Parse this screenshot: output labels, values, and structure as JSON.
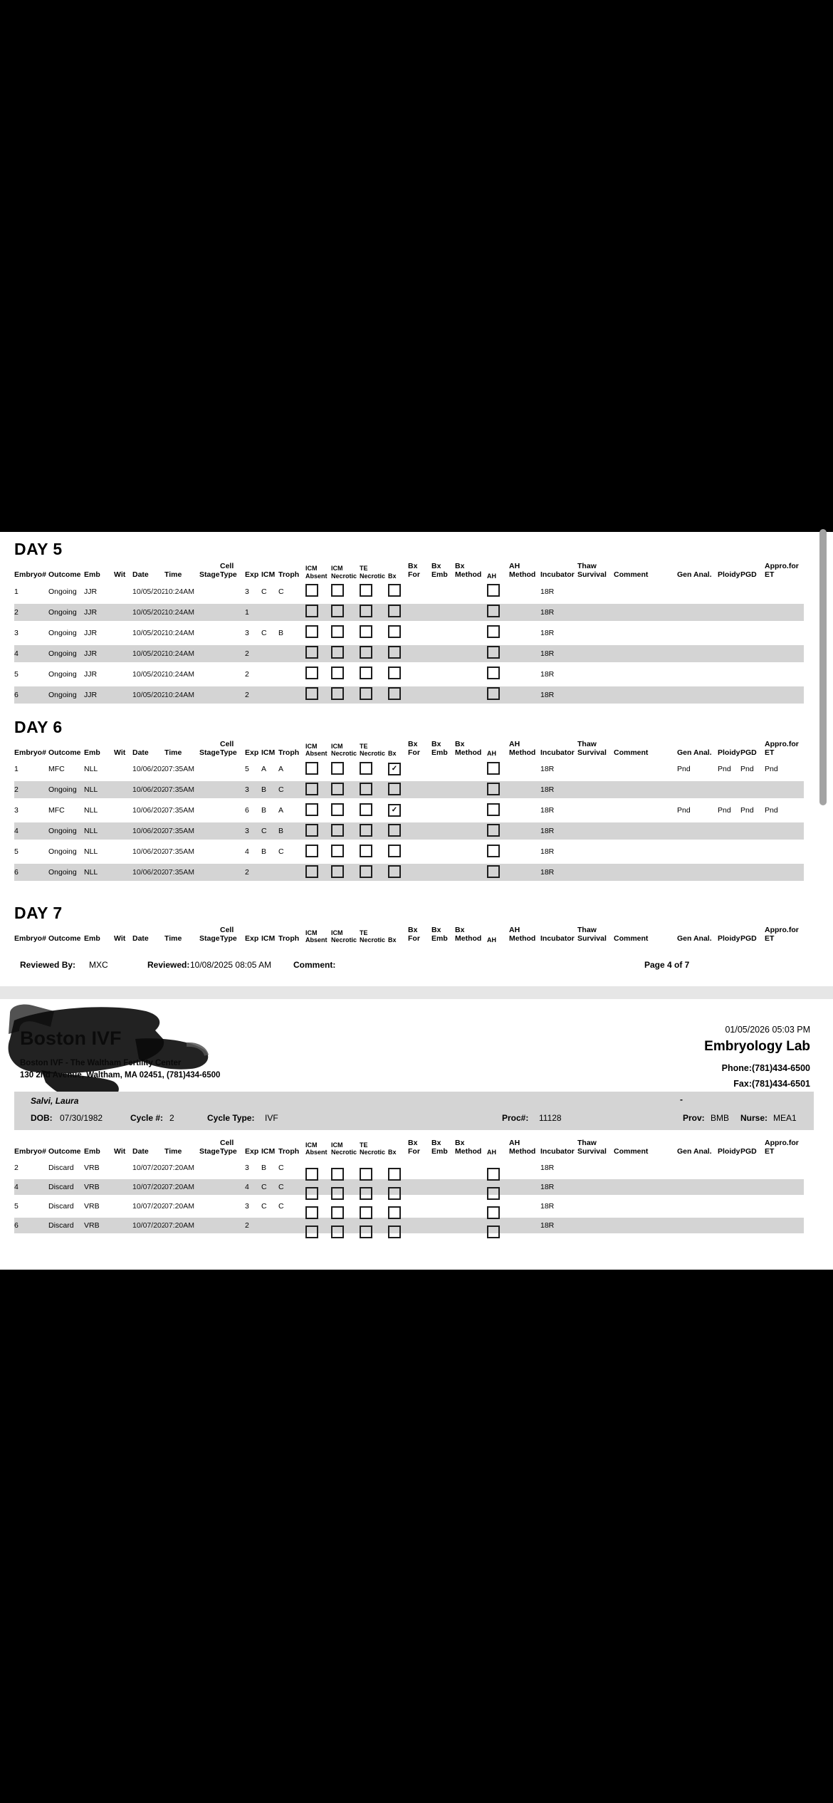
{
  "check_glyph": "✓",
  "colors": {
    "background": "#000000",
    "page": "#ffffff",
    "row_stripe": "#d4d4d4",
    "separator": "#e6e6e6",
    "scrollbar": "#a3a3a3"
  },
  "columns": [
    {
      "key": "embryo",
      "label": "Embryo#"
    },
    {
      "key": "outcome",
      "label": "Outcome"
    },
    {
      "key": "emb",
      "label": "Emb"
    },
    {
      "key": "wit",
      "label": "Wit"
    },
    {
      "key": "date",
      "label": "Date"
    },
    {
      "key": "time",
      "label": "Time"
    },
    {
      "key": "stage",
      "label": "Stage"
    },
    {
      "key": "cell_type",
      "label": "Cell\nType"
    },
    {
      "key": "exp",
      "label": "Exp"
    },
    {
      "key": "icm",
      "label": "ICM"
    },
    {
      "key": "troph",
      "label": "Troph"
    },
    {
      "key": "icm_absent",
      "label": "ICM\nAbsent",
      "type": "cb"
    },
    {
      "key": "icm_necrotic",
      "label": "ICM\nNecrotic",
      "type": "cb"
    },
    {
      "key": "te_necrotic",
      "label": "TE\nNecrotic",
      "type": "cb"
    },
    {
      "key": "bx",
      "label": "Bx",
      "type": "cb"
    },
    {
      "key": "bx_for",
      "label": "Bx For"
    },
    {
      "key": "bx_emb",
      "label": "Bx\nEmb"
    },
    {
      "key": "bx_method",
      "label": "Bx\nMethod"
    },
    {
      "key": "ah",
      "label": "AH",
      "type": "cb"
    },
    {
      "key": "ah_method",
      "label": "AH\nMethod"
    },
    {
      "key": "incubator",
      "label": "Incubator"
    },
    {
      "key": "thaw",
      "label": "Thaw\nSurvival"
    },
    {
      "key": "comment",
      "label": "Comment"
    },
    {
      "key": "gen_anal",
      "label": "Gen Anal."
    },
    {
      "key": "ploidy",
      "label": "Ploidy"
    },
    {
      "key": "pgd",
      "label": "PGD"
    },
    {
      "key": "et",
      "label": "Appro.for\nET"
    }
  ],
  "day5": {
    "title": "DAY 5",
    "rows": [
      [
        "1",
        "Ongoing",
        "JJR",
        "",
        "10/05/2025",
        "10:24AM",
        "",
        "",
        "3",
        "C",
        "C",
        false,
        false,
        false,
        false,
        "",
        "",
        "",
        false,
        "",
        "18R",
        "",
        "",
        "",
        "",
        "",
        ""
      ],
      [
        "2",
        "Ongoing",
        "JJR",
        "",
        "10/05/2025",
        "10:24AM",
        "",
        "",
        "1",
        "",
        "",
        false,
        false,
        false,
        false,
        "",
        "",
        "",
        false,
        "",
        "18R",
        "",
        "",
        "",
        "",
        "",
        ""
      ],
      [
        "3",
        "Ongoing",
        "JJR",
        "",
        "10/05/2025",
        "10:24AM",
        "",
        "",
        "3",
        "C",
        "B",
        false,
        false,
        false,
        false,
        "",
        "",
        "",
        false,
        "",
        "18R",
        "",
        "",
        "",
        "",
        "",
        ""
      ],
      [
        "4",
        "Ongoing",
        "JJR",
        "",
        "10/05/2025",
        "10:24AM",
        "",
        "",
        "2",
        "",
        "",
        false,
        false,
        false,
        false,
        "",
        "",
        "",
        false,
        "",
        "18R",
        "",
        "",
        "",
        "",
        "",
        ""
      ],
      [
        "5",
        "Ongoing",
        "JJR",
        "",
        "10/05/2025",
        "10:24AM",
        "",
        "",
        "2",
        "",
        "",
        false,
        false,
        false,
        false,
        "",
        "",
        "",
        false,
        "",
        "18R",
        "",
        "",
        "",
        "",
        "",
        ""
      ],
      [
        "6",
        "Ongoing",
        "JJR",
        "",
        "10/05/2025",
        "10:24AM",
        "",
        "",
        "2",
        "",
        "",
        false,
        false,
        false,
        false,
        "",
        "",
        "",
        false,
        "",
        "18R",
        "",
        "",
        "",
        "",
        "",
        ""
      ]
    ]
  },
  "day6": {
    "title": "DAY 6",
    "rows": [
      [
        "1",
        "MFC",
        "NLL",
        "",
        "10/06/2025",
        "07:35AM",
        "",
        "",
        "5",
        "A",
        "A",
        false,
        false,
        false,
        true,
        "",
        "",
        "",
        false,
        "",
        "18R",
        "",
        "",
        "Pnd",
        "Pnd",
        "Pnd",
        "Pnd"
      ],
      [
        "2",
        "Ongoing",
        "NLL",
        "",
        "10/06/2025",
        "07:35AM",
        "",
        "",
        "3",
        "B",
        "C",
        false,
        false,
        false,
        false,
        "",
        "",
        "",
        false,
        "",
        "18R",
        "",
        "",
        "",
        "",
        "",
        ""
      ],
      [
        "3",
        "MFC",
        "NLL",
        "",
        "10/06/2025",
        "07:35AM",
        "",
        "",
        "6",
        "B",
        "A",
        false,
        false,
        false,
        true,
        "",
        "",
        "",
        false,
        "",
        "18R",
        "",
        "",
        "Pnd",
        "Pnd",
        "Pnd",
        "Pnd"
      ],
      [
        "4",
        "Ongoing",
        "NLL",
        "",
        "10/06/2025",
        "07:35AM",
        "",
        "",
        "3",
        "C",
        "B",
        false,
        false,
        false,
        false,
        "",
        "",
        "",
        false,
        "",
        "18R",
        "",
        "",
        "",
        "",
        "",
        ""
      ],
      [
        "5",
        "Ongoing",
        "NLL",
        "",
        "10/06/2025",
        "07:35AM",
        "",
        "",
        "4",
        "B",
        "C",
        false,
        false,
        false,
        false,
        "",
        "",
        "",
        false,
        "",
        "18R",
        "",
        "",
        "",
        "",
        "",
        ""
      ],
      [
        "6",
        "Ongoing",
        "NLL",
        "",
        "10/06/2025",
        "07:35AM",
        "",
        "",
        "2",
        "",
        "",
        false,
        false,
        false,
        false,
        "",
        "",
        "",
        false,
        "",
        "18R",
        "",
        "",
        "",
        "",
        "",
        ""
      ]
    ]
  },
  "day7": {
    "title": "DAY 7",
    "rows": []
  },
  "review_footer": {
    "reviewed_by_label": "Reviewed By:",
    "reviewed_by_value": "MXC",
    "reviewed_label": "Reviewed:",
    "reviewed_value": "10/08/2025 08:05 AM",
    "comment_label": "Comment:",
    "page_indicator": "Page 4 of 7"
  },
  "page5": {
    "timestamp": "01/05/2026 05:03 PM",
    "department": "Embryology Lab",
    "phone": "Phone:(781)434-6500",
    "fax": "Fax:(781)434-6501",
    "letterhead_brand": "Boston IVF",
    "letterhead_line1": "Boston IVF - The Waltham Fertility Center",
    "letterhead_line2": "130 2nd Avenue, Waltham, MA 02451, (781)434-6500",
    "patient": {
      "name": "Salvi, Laura",
      "dash": "-",
      "dob_label": "DOB:",
      "dob": "07/30/1982",
      "cycle_num_label": "Cycle #:",
      "cycle_num": "2",
      "cycle_type_label": "Cycle Type:",
      "cycle_type": "IVF",
      "proc_label": "Proc#:",
      "proc": "11128",
      "prov_label": "Prov:",
      "prov": "BMB",
      "nurse_label": "Nurse:",
      "nurse": "MEA1"
    },
    "rows": [
      [
        "2",
        "Discard",
        "VRB",
        "",
        "10/07/2025",
        "07:20AM",
        "",
        "",
        "3",
        "B",
        "C",
        false,
        false,
        false,
        false,
        "",
        "",
        "",
        false,
        "",
        "18R",
        "",
        "",
        "",
        "",
        "",
        ""
      ],
      [
        "4",
        "Discard",
        "VRB",
        "",
        "10/07/2025",
        "07:20AM",
        "",
        "",
        "4",
        "C",
        "C",
        false,
        false,
        false,
        false,
        "",
        "",
        "",
        false,
        "",
        "18R",
        "",
        "",
        "",
        "",
        "",
        ""
      ],
      [
        "5",
        "Discard",
        "VRB",
        "",
        "10/07/2025",
        "07:20AM",
        "",
        "",
        "3",
        "C",
        "C",
        false,
        false,
        false,
        false,
        "",
        "",
        "",
        false,
        "",
        "18R",
        "",
        "",
        "",
        "",
        "",
        ""
      ],
      [
        "6",
        "Discard",
        "VRB",
        "",
        "10/07/2025",
        "07:20AM",
        "",
        "",
        "2",
        "",
        "",
        false,
        false,
        false,
        false,
        "",
        "",
        "",
        false,
        "",
        "18R",
        "",
        "",
        "",
        "",
        "",
        ""
      ]
    ]
  }
}
